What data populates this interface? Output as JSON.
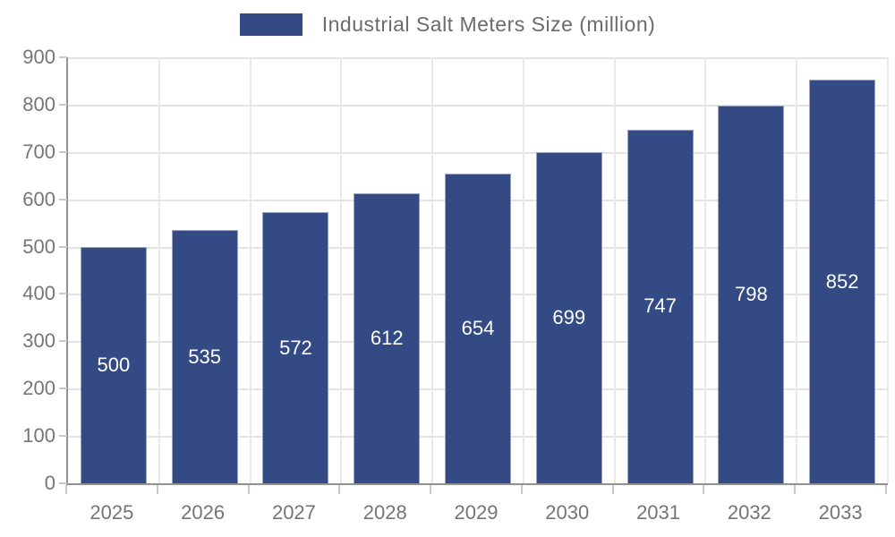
{
  "chart_data": {
    "type": "bar",
    "title": "Industrial Salt Meters Size (million)",
    "categories": [
      "2025",
      "2026",
      "2027",
      "2028",
      "2029",
      "2030",
      "2031",
      "2032",
      "2033"
    ],
    "values": [
      500,
      535,
      572,
      612,
      654,
      699,
      747,
      798,
      852
    ],
    "series": [
      {
        "name": "Industrial Salt Meters Size (million)",
        "values": [
          500,
          535,
          572,
          612,
          654,
          699,
          747,
          798,
          852
        ]
      }
    ],
    "xlabel": "",
    "ylabel": "",
    "ylim": [
      0,
      900
    ],
    "ytick_step": 100,
    "ytick_labels": [
      "0",
      "100",
      "200",
      "300",
      "400",
      "500",
      "600",
      "700",
      "800",
      "900"
    ],
    "grid": true,
    "legend_position": "top-center",
    "bar_color": "#344a84",
    "bar_label_color": "#ffffff",
    "axis_color": "#919191",
    "gridline_color": "#e4e4e4",
    "tick_label_color": "#757575",
    "legend_text_color": "#6b6b6b"
  }
}
